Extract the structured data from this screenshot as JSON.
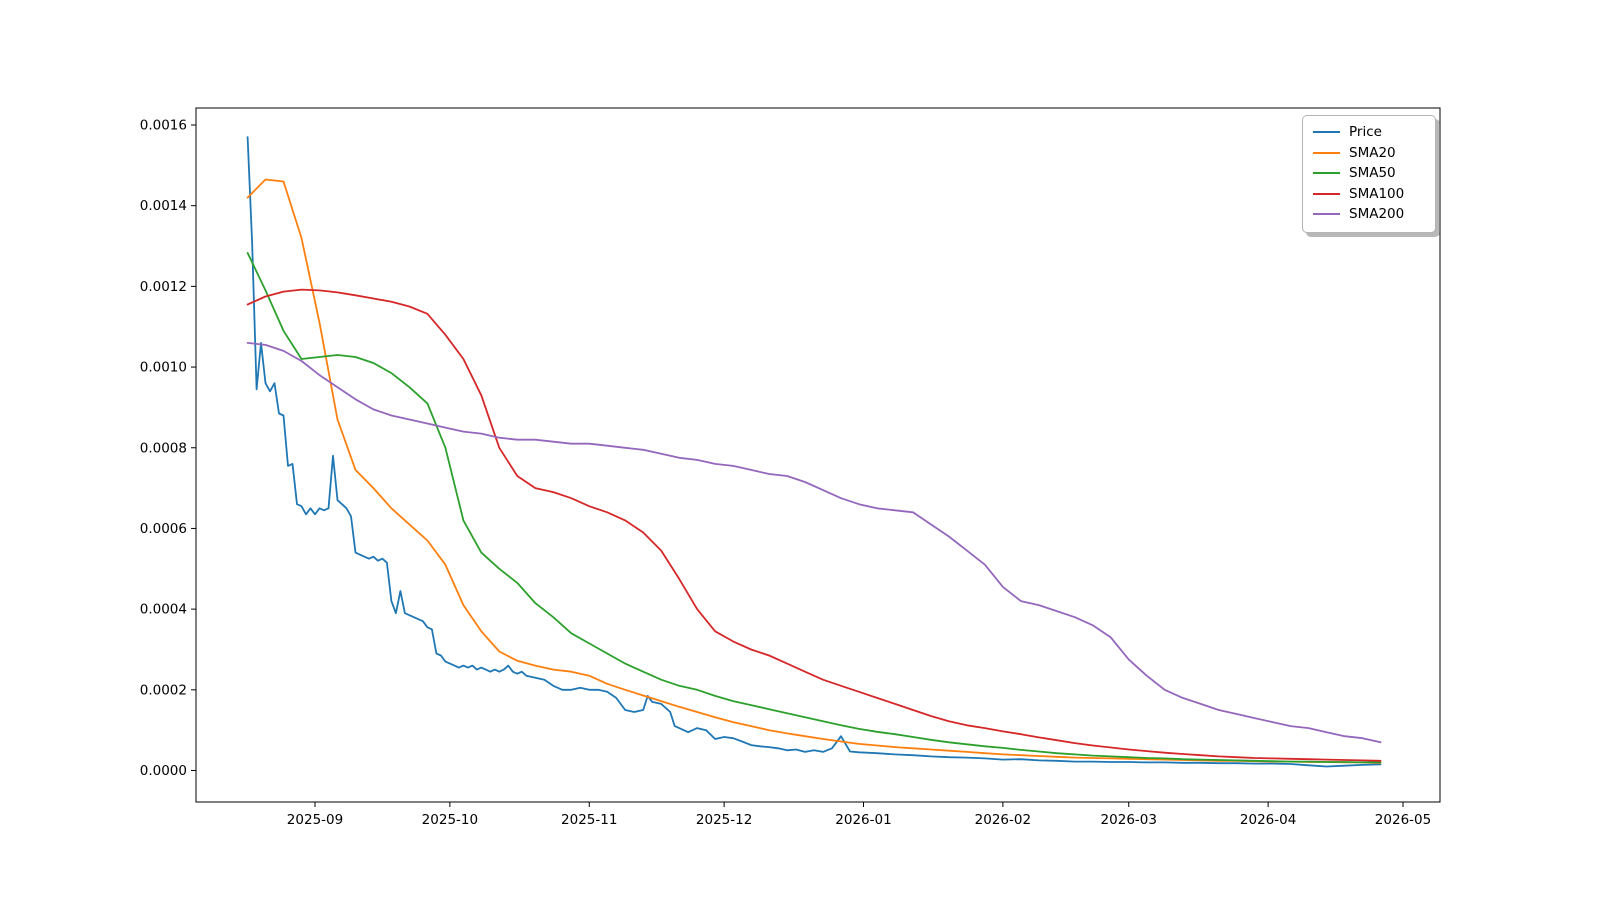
{
  "figure": {
    "background": "#ffffff",
    "frame_color": "#000000",
    "text_color": "#000000"
  },
  "chart_data": {
    "type": "line",
    "title": "",
    "xlabel": "",
    "ylabel": "",
    "grid": false,
    "legend": {
      "position": "upper right",
      "entries": [
        "Price",
        "SMA20",
        "SMA50",
        "SMA100",
        "SMA200"
      ]
    },
    "x_axis": {
      "tick_labels": [
        "2025-09",
        "2025-10",
        "2025-11",
        "2025-12",
        "2026-01",
        "2026-02",
        "2026-03",
        "2026-04",
        "2026-05"
      ],
      "tick_dates": [
        "2025-09-01",
        "2025-10-01",
        "2025-11-01",
        "2025-12-01",
        "2026-01-01",
        "2026-02-01",
        "2026-03-01",
        "2026-04-01",
        "2026-05-01"
      ]
    },
    "y_axis": {
      "tick_values": [
        0.0,
        0.0002,
        0.0004,
        0.0006,
        0.0008,
        0.001,
        0.0012,
        0.0014,
        0.0016
      ],
      "tick_labels": [
        "0.0000",
        "0.0002",
        "0.0004",
        "0.0006",
        "0.0008",
        "0.0010",
        "0.0012",
        "0.0014",
        "0.0016"
      ]
    },
    "ylim": [
      -7.8e-05,
      0.001642
    ],
    "shared_x": [
      "2025-08-17",
      "2025-08-21",
      "2025-08-25",
      "2025-08-29",
      "2025-09-02",
      "2025-09-06",
      "2025-09-10",
      "2025-09-14",
      "2025-09-18",
      "2025-09-22",
      "2025-09-26",
      "2025-09-30",
      "2025-10-04",
      "2025-10-08",
      "2025-10-12",
      "2025-10-16",
      "2025-10-20",
      "2025-10-24",
      "2025-10-28",
      "2025-11-01",
      "2025-11-05",
      "2025-11-09",
      "2025-11-13",
      "2025-11-17",
      "2025-11-21",
      "2025-11-25",
      "2025-11-29",
      "2025-12-03",
      "2025-12-07",
      "2025-12-11",
      "2025-12-15",
      "2025-12-19",
      "2025-12-23",
      "2025-12-27",
      "2025-12-31",
      "2026-01-04",
      "2026-01-08",
      "2026-01-12",
      "2026-01-16",
      "2026-01-20",
      "2026-01-24",
      "2026-01-28",
      "2026-02-01",
      "2026-02-05",
      "2026-02-09",
      "2026-02-13",
      "2026-02-17",
      "2026-02-21",
      "2026-02-25",
      "2026-03-01",
      "2026-03-05",
      "2026-03-09",
      "2026-03-13",
      "2026-03-17",
      "2026-03-21",
      "2026-03-25",
      "2026-03-29",
      "2026-04-02",
      "2026-04-06",
      "2026-04-10",
      "2026-04-14",
      "2026-04-18",
      "2026-04-22",
      "2026-04-26"
    ],
    "series": [
      {
        "name": "Price",
        "color": "#1f77b4",
        "points": [
          [
            "2025-08-17",
            0.00157
          ],
          [
            "2025-08-18",
            0.00131
          ],
          [
            "2025-08-19",
            0.000945
          ],
          [
            "2025-08-20",
            0.00106
          ],
          [
            "2025-08-21",
            0.00096
          ],
          [
            "2025-08-22",
            0.00094
          ],
          [
            "2025-08-23",
            0.00096
          ],
          [
            "2025-08-24",
            0.000885
          ],
          [
            "2025-08-25",
            0.00088
          ],
          [
            "2025-08-26",
            0.000755
          ],
          [
            "2025-08-27",
            0.00076
          ],
          [
            "2025-08-28",
            0.00066
          ],
          [
            "2025-08-29",
            0.000655
          ],
          [
            "2025-08-30",
            0.000635
          ],
          [
            "2025-08-31",
            0.00065
          ],
          [
            "2025-09-01",
            0.000635
          ],
          [
            "2025-09-02",
            0.00065
          ],
          [
            "2025-09-03",
            0.000645
          ],
          [
            "2025-09-04",
            0.00065
          ],
          [
            "2025-09-05",
            0.00078
          ],
          [
            "2025-09-06",
            0.00067
          ],
          [
            "2025-09-07",
            0.00066
          ],
          [
            "2025-09-08",
            0.00065
          ],
          [
            "2025-09-09",
            0.00063
          ],
          [
            "2025-09-10",
            0.00054
          ],
          [
            "2025-09-11",
            0.000535
          ],
          [
            "2025-09-12",
            0.00053
          ],
          [
            "2025-09-13",
            0.000525
          ],
          [
            "2025-09-14",
            0.00053
          ],
          [
            "2025-09-15",
            0.00052
          ],
          [
            "2025-09-16",
            0.000525
          ],
          [
            "2025-09-17",
            0.000515
          ],
          [
            "2025-09-18",
            0.00042
          ],
          [
            "2025-09-19",
            0.00039
          ],
          [
            "2025-09-20",
            0.000445
          ],
          [
            "2025-09-21",
            0.00039
          ],
          [
            "2025-09-22",
            0.000385
          ],
          [
            "2025-09-23",
            0.00038
          ],
          [
            "2025-09-24",
            0.000375
          ],
          [
            "2025-09-25",
            0.00037
          ],
          [
            "2025-09-26",
            0.000355
          ],
          [
            "2025-09-27",
            0.00035
          ],
          [
            "2025-09-28",
            0.00029
          ],
          [
            "2025-09-29",
            0.000285
          ],
          [
            "2025-09-30",
            0.00027
          ],
          [
            "2025-10-01",
            0.000265
          ],
          [
            "2025-10-02",
            0.00026
          ],
          [
            "2025-10-03",
            0.000255
          ],
          [
            "2025-10-04",
            0.00026
          ],
          [
            "2025-10-05",
            0.000255
          ],
          [
            "2025-10-06",
            0.00026
          ],
          [
            "2025-10-07",
            0.00025
          ],
          [
            "2025-10-08",
            0.000255
          ],
          [
            "2025-10-09",
            0.00025
          ],
          [
            "2025-10-10",
            0.000245
          ],
          [
            "2025-10-11",
            0.00025
          ],
          [
            "2025-10-12",
            0.000245
          ],
          [
            "2025-10-13",
            0.00025
          ],
          [
            "2025-10-14",
            0.00026
          ],
          [
            "2025-10-15",
            0.000245
          ],
          [
            "2025-10-16",
            0.00024
          ],
          [
            "2025-10-17",
            0.000245
          ],
          [
            "2025-10-18",
            0.000235
          ],
          [
            "2025-10-20",
            0.00023
          ],
          [
            "2025-10-22",
            0.000225
          ],
          [
            "2025-10-24",
            0.00021
          ],
          [
            "2025-10-26",
            0.0002
          ],
          [
            "2025-10-28",
            0.0002
          ],
          [
            "2025-10-30",
            0.000205
          ],
          [
            "2025-11-01",
            0.0002
          ],
          [
            "2025-11-03",
            0.0002
          ],
          [
            "2025-11-05",
            0.000195
          ],
          [
            "2025-11-07",
            0.00018
          ],
          [
            "2025-11-09",
            0.00015
          ],
          [
            "2025-11-11",
            0.000145
          ],
          [
            "2025-11-13",
            0.00015
          ],
          [
            "2025-11-14",
            0.000185
          ],
          [
            "2025-11-15",
            0.00017
          ],
          [
            "2025-11-17",
            0.000165
          ],
          [
            "2025-11-19",
            0.000145
          ],
          [
            "2025-11-20",
            0.00011
          ],
          [
            "2025-11-21",
            0.000105
          ],
          [
            "2025-11-23",
            9.5e-05
          ],
          [
            "2025-11-25",
            0.000105
          ],
          [
            "2025-11-27",
            0.0001
          ],
          [
            "2025-11-29",
            7.8e-05
          ],
          [
            "2025-12-01",
            8.3e-05
          ],
          [
            "2025-12-03",
            8e-05
          ],
          [
            "2025-12-05",
            7.2e-05
          ],
          [
            "2025-12-07",
            6.3e-05
          ],
          [
            "2025-12-09",
            6e-05
          ],
          [
            "2025-12-11",
            5.8e-05
          ],
          [
            "2025-12-13",
            5.5e-05
          ],
          [
            "2025-12-15",
            5e-05
          ],
          [
            "2025-12-17",
            5.2e-05
          ],
          [
            "2025-12-19",
            4.6e-05
          ],
          [
            "2025-12-21",
            5e-05
          ],
          [
            "2025-12-23",
            4.6e-05
          ],
          [
            "2025-12-25",
            5.5e-05
          ],
          [
            "2025-12-27",
            8.5e-05
          ],
          [
            "2025-12-29",
            4.7e-05
          ],
          [
            "2025-12-31",
            4.5e-05
          ],
          [
            "2026-01-04",
            4.3e-05
          ],
          [
            "2026-01-08",
            4e-05
          ],
          [
            "2026-01-12",
            3.8e-05
          ],
          [
            "2026-01-16",
            3.5e-05
          ],
          [
            "2026-01-20",
            3.3e-05
          ],
          [
            "2026-01-24",
            3.2e-05
          ],
          [
            "2026-01-28",
            3e-05
          ],
          [
            "2026-02-01",
            2.7e-05
          ],
          [
            "2026-02-05",
            2.8e-05
          ],
          [
            "2026-02-09",
            2.5e-05
          ],
          [
            "2026-02-13",
            2.4e-05
          ],
          [
            "2026-02-17",
            2.2e-05
          ],
          [
            "2026-02-21",
            2.2e-05
          ],
          [
            "2026-02-25",
            2.1e-05
          ],
          [
            "2026-03-01",
            2.1e-05
          ],
          [
            "2026-03-05",
            2e-05
          ],
          [
            "2026-03-09",
            2e-05
          ],
          [
            "2026-03-13",
            1.9e-05
          ],
          [
            "2026-03-17",
            1.9e-05
          ],
          [
            "2026-03-21",
            1.8e-05
          ],
          [
            "2026-03-25",
            1.8e-05
          ],
          [
            "2026-03-29",
            1.7e-05
          ],
          [
            "2026-04-02",
            1.7e-05
          ],
          [
            "2026-04-06",
            1.6e-05
          ],
          [
            "2026-04-10",
            1.3e-05
          ],
          [
            "2026-04-14",
            1e-05
          ],
          [
            "2026-04-18",
            1.2e-05
          ],
          [
            "2026-04-22",
            1.4e-05
          ],
          [
            "2026-04-26",
            1.5e-05
          ]
        ]
      },
      {
        "name": "SMA20",
        "color": "#ff7f0e",
        "values": [
          0.00142,
          0.001465,
          0.00146,
          0.00132,
          0.00111,
          0.00087,
          0.000745,
          0.0007,
          0.00065,
          0.00061,
          0.00057,
          0.00051,
          0.00041,
          0.000345,
          0.000295,
          0.000272,
          0.00026,
          0.00025,
          0.000245,
          0.000235,
          0.000215,
          0.0002,
          0.000186,
          0.000172,
          0.000158,
          0.000145,
          0.000132,
          0.00012,
          0.00011,
          0.0001,
          9.2e-05,
          8.5e-05,
          7.8e-05,
          7.2e-05,
          6.6e-05,
          6.2e-05,
          5.8e-05,
          5.5e-05,
          5.2e-05,
          4.9e-05,
          4.6e-05,
          4.3e-05,
          4e-05,
          3.8e-05,
          3.6e-05,
          3.4e-05,
          3.2e-05,
          3.1e-05,
          3e-05,
          2.9e-05,
          2.8e-05,
          2.7e-05,
          2.6e-05,
          2.5e-05,
          2.4e-05,
          2.4e-05,
          2.3e-05,
          2.2e-05,
          2.2e-05,
          2.1e-05,
          2.1e-05,
          2e-05,
          2e-05,
          1.9e-05
        ]
      },
      {
        "name": "SMA50",
        "color": "#2ca02c",
        "values": [
          0.001283,
          0.00119,
          0.00109,
          0.00102,
          0.001025,
          0.00103,
          0.001025,
          0.00101,
          0.000985,
          0.00095,
          0.00091,
          0.0008,
          0.00062,
          0.00054,
          0.0005,
          0.000465,
          0.000415,
          0.00038,
          0.00034,
          0.000315,
          0.00029,
          0.000265,
          0.000245,
          0.000225,
          0.00021,
          0.0002,
          0.000185,
          0.000172,
          0.000162,
          0.000152,
          0.000142,
          0.000132,
          0.000122,
          0.000112,
          0.000103,
          9.6e-05,
          9e-05,
          8.3e-05,
          7.6e-05,
          7e-05,
          6.5e-05,
          6e-05,
          5.6e-05,
          5.1e-05,
          4.7e-05,
          4.3e-05,
          4e-05,
          3.7e-05,
          3.5e-05,
          3.3e-05,
          3.1e-05,
          3e-05,
          2.8e-05,
          2.7e-05,
          2.6e-05,
          2.5e-05,
          2.4e-05,
          2.3e-05,
          2.2e-05,
          2.2e-05,
          2.1e-05,
          2.1e-05,
          2e-05,
          2e-05
        ]
      },
      {
        "name": "SMA100",
        "color": "#d62728",
        "values": [
          0.001155,
          0.001175,
          0.001187,
          0.001192,
          0.00119,
          0.001185,
          0.001178,
          0.00117,
          0.001162,
          0.00115,
          0.001132,
          0.00108,
          0.00102,
          0.00093,
          0.0008,
          0.00073,
          0.0007,
          0.00069,
          0.000675,
          0.000655,
          0.00064,
          0.00062,
          0.00059,
          0.000545,
          0.000475,
          0.0004,
          0.000345,
          0.00032,
          0.0003,
          0.000285,
          0.000265,
          0.000245,
          0.000225,
          0.00021,
          0.000195,
          0.00018,
          0.000165,
          0.00015,
          0.000135,
          0.000122,
          0.000112,
          0.000105,
          9.7e-05,
          9e-05,
          8.2e-05,
          7.5e-05,
          6.8e-05,
          6.2e-05,
          5.7e-05,
          5.2e-05,
          4.8e-05,
          4.4e-05,
          4.1e-05,
          3.8e-05,
          3.5e-05,
          3.3e-05,
          3.1e-05,
          3e-05,
          2.9e-05,
          2.8e-05,
          2.7e-05,
          2.6e-05,
          2.5e-05,
          2.4e-05
        ]
      },
      {
        "name": "SMA200",
        "color": "#9467bd",
        "values": [
          0.00106,
          0.001055,
          0.00104,
          0.001015,
          0.00098,
          0.00095,
          0.00092,
          0.000895,
          0.00088,
          0.00087,
          0.00086,
          0.00085,
          0.00084,
          0.000835,
          0.000825,
          0.00082,
          0.00082,
          0.000815,
          0.00081,
          0.00081,
          0.000805,
          0.0008,
          0.000795,
          0.000785,
          0.000775,
          0.00077,
          0.00076,
          0.000755,
          0.000745,
          0.000735,
          0.00073,
          0.000715,
          0.000695,
          0.000675,
          0.00066,
          0.00065,
          0.000645,
          0.00064,
          0.00061,
          0.00058,
          0.000545,
          0.00051,
          0.000455,
          0.00042,
          0.00041,
          0.000395,
          0.00038,
          0.00036,
          0.00033,
          0.000275,
          0.000235,
          0.0002,
          0.00018,
          0.000165,
          0.00015,
          0.00014,
          0.00013,
          0.00012,
          0.00011,
          0.000105,
          9.5e-05,
          8.5e-05,
          8e-05,
          7e-05
        ]
      }
    ]
  }
}
